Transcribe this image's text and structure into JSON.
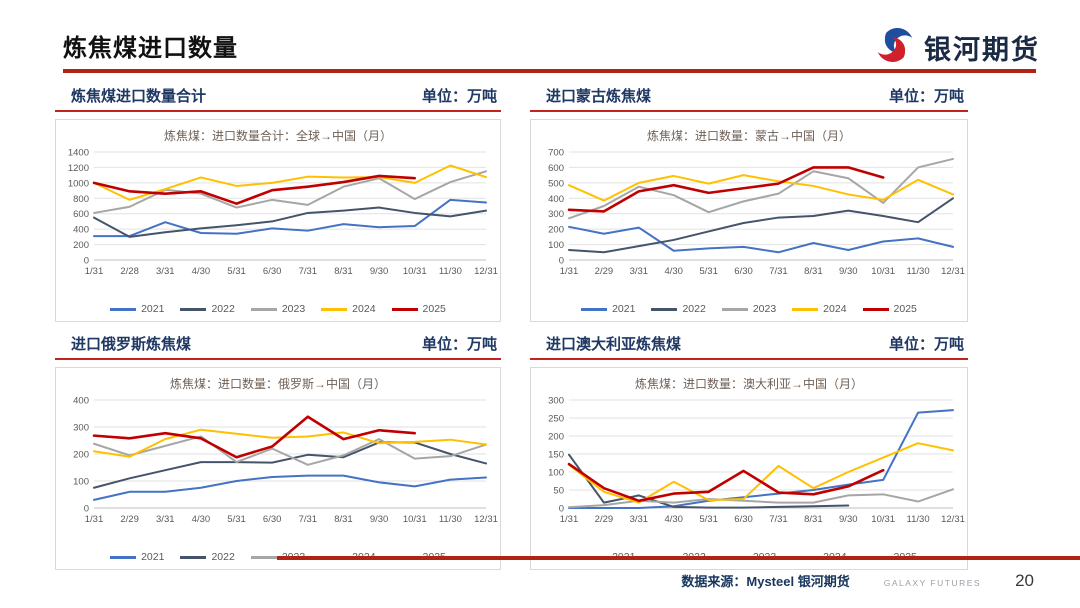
{
  "page": {
    "title": "炼焦煤进口数量",
    "logo": {
      "text": "银河期货",
      "icon": "galaxy-swirl-icon",
      "red": "#D0202C",
      "blue": "#1F4E9C"
    },
    "footer": {
      "source": "数据来源：Mysteel 银河期货",
      "brand": "GALAXY FUTURES",
      "page_number": "20"
    }
  },
  "colors": {
    "accent_red": "#B02418",
    "header_navy": "#1F3864",
    "axis_text": "#595959",
    "grid": "#e2e2e2"
  },
  "chart_data": [
    {
      "type": "line",
      "section_title": "炼焦煤进口数量合计",
      "unit_label": "单位：万吨",
      "title": "炼焦煤：进口数量合计：全球→中国（月）",
      "x": [
        "1/31",
        "2/28",
        "3/31",
        "4/30",
        "5/31",
        "6/30",
        "7/31",
        "8/31",
        "9/30",
        "10/31",
        "11/30",
        "12/31"
      ],
      "ymin": 0,
      "ymax": 1400,
      "ystep": 200,
      "series": [
        {
          "name": "2021",
          "color": "#4472C4",
          "width": 2,
          "values": [
            310,
            310,
            490,
            350,
            340,
            410,
            380,
            465,
            425,
            440,
            780,
            745
          ]
        },
        {
          "name": "2022",
          "color": "#44546A",
          "width": 2,
          "values": [
            550,
            300,
            360,
            410,
            450,
            500,
            610,
            640,
            680,
            610,
            565,
            640
          ]
        },
        {
          "name": "2023",
          "color": "#A6A6A6",
          "width": 2,
          "values": [
            610,
            690,
            910,
            860,
            680,
            780,
            715,
            950,
            1060,
            790,
            1010,
            1150
          ]
        },
        {
          "name": "2024",
          "color": "#FFC000",
          "width": 2,
          "values": [
            1000,
            780,
            920,
            1070,
            960,
            1000,
            1080,
            1070,
            1075,
            1000,
            1225,
            1075
          ]
        },
        {
          "name": "2025",
          "color": "#C00000",
          "width": 2.6,
          "values": [
            1000,
            890,
            860,
            890,
            730,
            905,
            950,
            1010,
            1090,
            1060,
            null,
            null
          ]
        }
      ]
    },
    {
      "type": "line",
      "section_title": "进口蒙古炼焦煤",
      "unit_label": "单位：万吨",
      "title": "炼焦煤：进口数量：蒙古→中国（月）",
      "x": [
        "1/31",
        "2/29",
        "3/31",
        "4/30",
        "5/31",
        "6/30",
        "7/31",
        "8/31",
        "9/30",
        "10/31",
        "11/30",
        "12/31"
      ],
      "ymin": 0,
      "ymax": 700,
      "ystep": 100,
      "series": [
        {
          "name": "2021",
          "color": "#4472C4",
          "width": 2,
          "values": [
            215,
            170,
            210,
            60,
            75,
            85,
            50,
            110,
            65,
            120,
            140,
            85
          ]
        },
        {
          "name": "2022",
          "color": "#44546A",
          "width": 2,
          "values": [
            65,
            50,
            90,
            130,
            185,
            240,
            275,
            285,
            320,
            285,
            245,
            400
          ]
        },
        {
          "name": "2023",
          "color": "#A6A6A6",
          "width": 2,
          "values": [
            270,
            350,
            475,
            420,
            310,
            380,
            430,
            575,
            530,
            370,
            600,
            655
          ]
        },
        {
          "name": "2024",
          "color": "#FFC000",
          "width": 2,
          "values": [
            485,
            385,
            500,
            545,
            495,
            550,
            510,
            480,
            425,
            390,
            520,
            425
          ]
        },
        {
          "name": "2025",
          "color": "#C00000",
          "width": 2.6,
          "values": [
            325,
            315,
            445,
            485,
            435,
            465,
            495,
            600,
            600,
            535,
            null,
            null
          ]
        }
      ]
    },
    {
      "type": "line",
      "section_title": "进口俄罗斯炼焦煤",
      "unit_label": "单位：万吨",
      "title": "炼焦煤：进口数量：俄罗斯→中国（月）",
      "x": [
        "1/31",
        "2/29",
        "3/31",
        "4/30",
        "5/31",
        "6/30",
        "7/31",
        "8/31",
        "9/30",
        "10/31",
        "11/30",
        "12/31"
      ],
      "ymin": 0,
      "ymax": 400,
      "ystep": 100,
      "series": [
        {
          "name": "2021",
          "color": "#4472C4",
          "width": 2,
          "values": [
            30,
            60,
            60,
            75,
            100,
            115,
            120,
            120,
            95,
            80,
            105,
            113
          ]
        },
        {
          "name": "2022",
          "color": "#44546A",
          "width": 2,
          "values": [
            75,
            110,
            140,
            170,
            170,
            168,
            197,
            188,
            243,
            243,
            200,
            165
          ]
        },
        {
          "name": "2023",
          "color": "#A6A6A6",
          "width": 2,
          "values": [
            238,
            195,
            230,
            265,
            170,
            220,
            160,
            195,
            255,
            183,
            192,
            235
          ]
        },
        {
          "name": "2024",
          "color": "#FFC000",
          "width": 2,
          "values": [
            210,
            190,
            255,
            290,
            275,
            260,
            265,
            280,
            240,
            245,
            253,
            235
          ]
        },
        {
          "name": "2025",
          "color": "#C00000",
          "width": 2.6,
          "values": [
            268,
            258,
            277,
            258,
            188,
            228,
            338,
            255,
            288,
            277,
            null,
            null
          ]
        }
      ]
    },
    {
      "type": "line",
      "section_title": "进口澳大利亚炼焦煤",
      "unit_label": "单位：万吨",
      "title": "炼焦煤：进口数量：澳大利亚→中国（月）",
      "x": [
        "1/31",
        "2/29",
        "3/31",
        "4/30",
        "5/31",
        "6/30",
        "7/31",
        "8/31",
        "9/30",
        "10/31",
        "11/30",
        "12/31"
      ],
      "ymin": 0,
      "ymax": 300,
      "ystep": 50,
      "series": [
        {
          "name": "2021",
          "color": "#4472C4",
          "width": 2,
          "values": [
            0,
            0,
            0,
            5,
            20,
            30,
            40,
            50,
            65,
            78,
            265,
            272
          ]
        },
        {
          "name": "2022",
          "color": "#44546A",
          "width": 2,
          "values": [
            148,
            15,
            35,
            3,
            1,
            1,
            3,
            5,
            7,
            null,
            null,
            null
          ]
        },
        {
          "name": "2023",
          "color": "#A6A6A6",
          "width": 2,
          "values": [
            2,
            8,
            20,
            15,
            25,
            20,
            15,
            15,
            35,
            38,
            18,
            52
          ]
        },
        {
          "name": "2024",
          "color": "#FFC000",
          "width": 2,
          "values": [
            120,
            45,
            15,
            73,
            22,
            25,
            117,
            55,
            100,
            140,
            180,
            160
          ]
        },
        {
          "name": "2025",
          "color": "#C00000",
          "width": 2.6,
          "values": [
            122,
            55,
            20,
            40,
            45,
            103,
            43,
            38,
            60,
            105,
            null,
            null
          ]
        }
      ]
    }
  ]
}
